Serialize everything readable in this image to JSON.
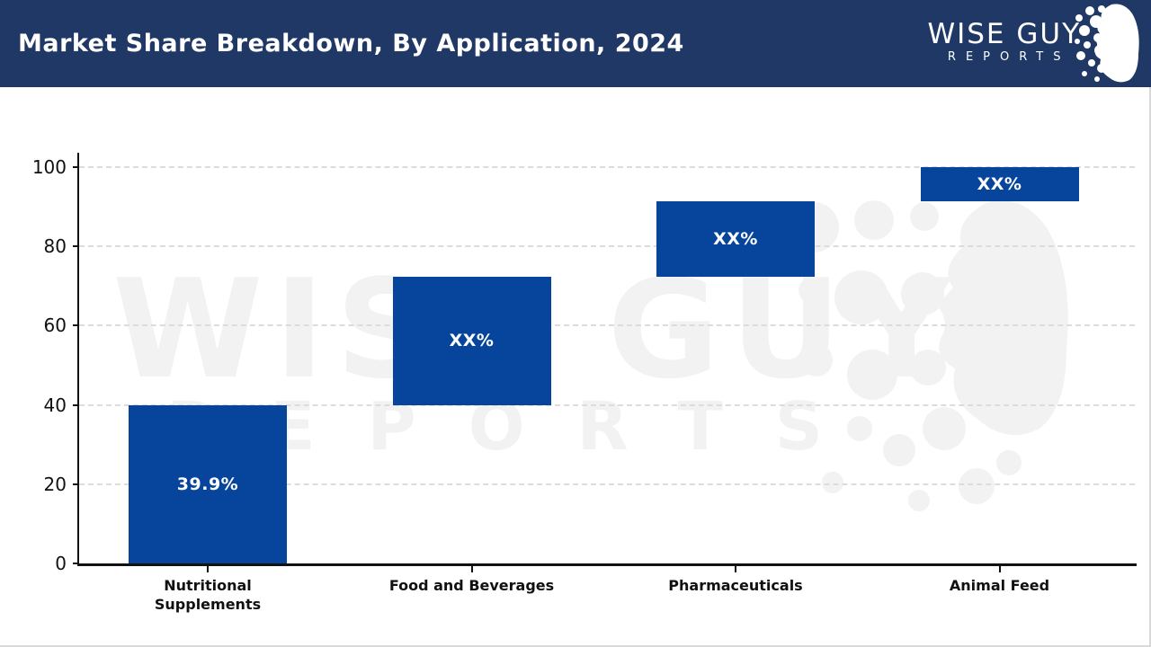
{
  "header": {
    "title": "Market Share Breakdown, By Application, 2024",
    "logo": {
      "name": "WISE GUY",
      "subname": "REPORTS"
    }
  },
  "watermark": {
    "line1": "WISE GUY",
    "line2": "REPORTS"
  },
  "chart_data": {
    "type": "bar",
    "subtype": "waterfall",
    "title": "Market Share Breakdown, By Application, 2024",
    "categories": [
      "Nutritional\nSupplements",
      "Food and Beverages",
      "Pharmaceuticals",
      "Animal Feed"
    ],
    "segments": [
      {
        "category": "Nutritional Supplements",
        "start": 0,
        "end": 39.9,
        "label": "39.9%"
      },
      {
        "category": "Food and Beverages",
        "start": 39.9,
        "end": 72.4,
        "label": "XX%"
      },
      {
        "category": "Pharmaceuticals",
        "start": 72.4,
        "end": 91.3,
        "label": "XX%"
      },
      {
        "category": "Animal Feed",
        "start": 91.3,
        "end": 100,
        "label": "XX%"
      }
    ],
    "ylim": [
      0,
      100
    ],
    "yticks": [
      0,
      20,
      40,
      60,
      80,
      100
    ],
    "grid": "horizontal-dashed",
    "legend": "none",
    "colors": {
      "bar": "#07459c",
      "bar_label": "#ffffff",
      "grid": "#dcdcdc",
      "axis": "#111111",
      "header_bg": "#1f3866",
      "watermark": "#f2f2f2"
    }
  }
}
